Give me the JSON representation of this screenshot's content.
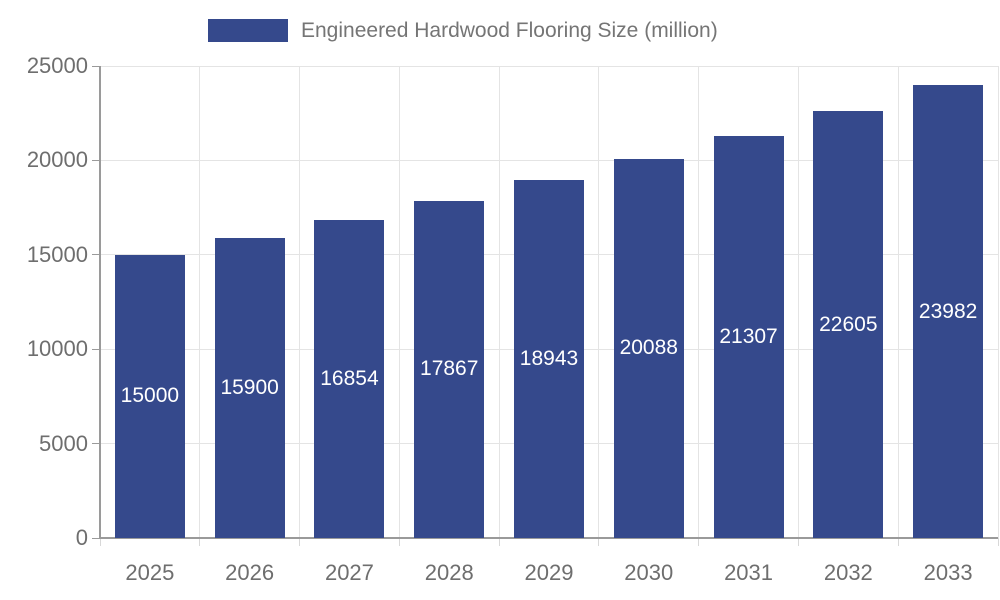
{
  "chart_data": {
    "type": "bar",
    "title": "Engineered Hardwood Flooring Size (million)",
    "categories": [
      "2025",
      "2026",
      "2027",
      "2028",
      "2029",
      "2030",
      "2031",
      "2032",
      "2033"
    ],
    "values": [
      15000,
      15900,
      16854,
      17867,
      18943,
      20088,
      21307,
      22605,
      23982
    ],
    "xlabel": "",
    "ylabel": "",
    "ylim": [
      0,
      25000
    ],
    "yticks": [
      0,
      5000,
      10000,
      15000,
      20000,
      25000
    ],
    "grid": "on",
    "gridlines": "horizontal-and-vertical",
    "legend_position": "top",
    "value_label_position": "inside-center",
    "colors": {
      "bar": "#35498C",
      "grid_line": "#E4E4E4",
      "axis_line": "#9A9A9A",
      "x_tick_mark": "#D8D8D8",
      "tick_label": "#6E6E6E",
      "title_text": "#757575",
      "value_label": "#FFFFFF",
      "background": "#FFFFFF"
    }
  }
}
